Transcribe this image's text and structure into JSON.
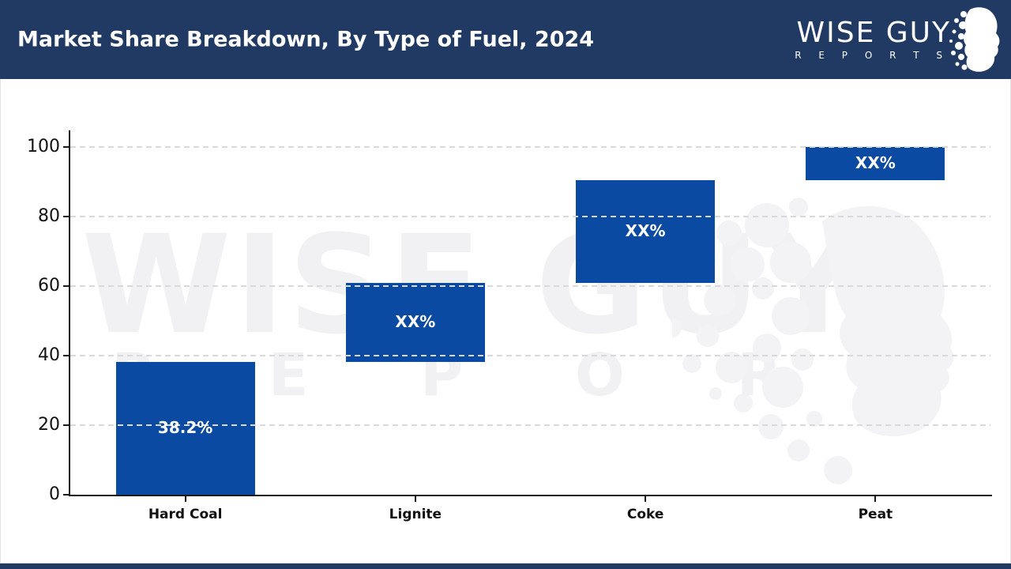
{
  "header": {
    "title": "Market Share Breakdown, By Type of Fuel, 2024",
    "logo": {
      "line1": "WISE GUY",
      "line2": "R E P O R T S"
    }
  },
  "watermark": {
    "line1": "WISE GUY",
    "line2": "R E P O R T S"
  },
  "chart_data": {
    "type": "bar",
    "subtype": "waterfall",
    "title": "Market Share Breakdown, By Type of Fuel, 2024",
    "categories": [
      "Hard Coal",
      "Lignite",
      "Coke",
      "Peat"
    ],
    "bars": [
      {
        "category": "Hard Coal",
        "start": 0,
        "end": 38.2,
        "label": "38.2%"
      },
      {
        "category": "Lignite",
        "start": 38.2,
        "end": 61.0,
        "label": "XX%"
      },
      {
        "category": "Coke",
        "start": 61.0,
        "end": 90.5,
        "label": "XX%"
      },
      {
        "category": "Peat",
        "start": 90.5,
        "end": 100.0,
        "label": "XX%"
      }
    ],
    "yticks": [
      0,
      20,
      40,
      60,
      80,
      100
    ],
    "ylim": [
      0,
      105
    ],
    "xlabel": "",
    "ylabel": "",
    "grid": "dashed-horizontal",
    "legend": "none",
    "colors": {
      "bar": "#0b4aa2",
      "bar_label": "#ffffff",
      "header_bg": "#213a64",
      "grid": "#d9d9d9",
      "axis": "#1a1a1a",
      "watermark": "#f1f1f3"
    }
  }
}
